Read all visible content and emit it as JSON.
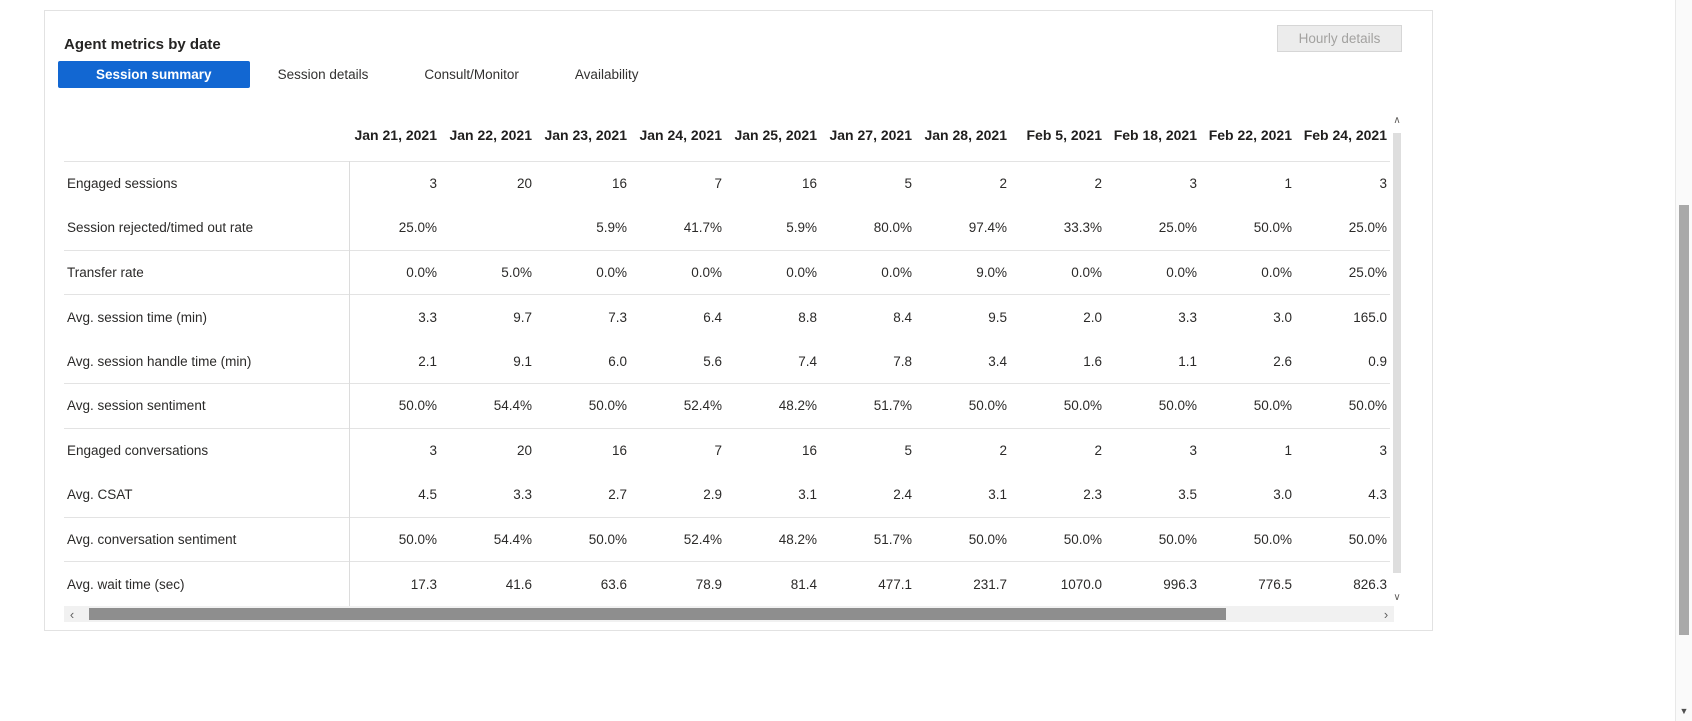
{
  "colors": {
    "accent": "#1267d2",
    "card_border": "#e2e2e2",
    "disabled_button_text": "#a3a2a0",
    "scroll_thumb": "#8e8e8e"
  },
  "header": {
    "title": "Agent metrics by date",
    "button_label": "Hourly details"
  },
  "tabs": [
    {
      "label": "Session summary",
      "active": true
    },
    {
      "label": "Session details",
      "active": false
    },
    {
      "label": "Consult/Monitor",
      "active": false
    },
    {
      "label": "Availability",
      "active": false
    }
  ],
  "table": {
    "columns": [
      "Jan 21, 2021",
      "Jan 22, 2021",
      "Jan 23, 2021",
      "Jan 24, 2021",
      "Jan 25, 2021",
      "Jan 27, 2021",
      "Jan 28, 2021",
      "Feb 5, 2021",
      "Feb 18, 2021",
      "Feb 22, 2021",
      "Feb 24, 2021"
    ],
    "rows": [
      {
        "label": "Engaged sessions",
        "separator": true,
        "values": [
          "3",
          "20",
          "16",
          "7",
          "16",
          "5",
          "2",
          "2",
          "3",
          "1",
          "3"
        ]
      },
      {
        "label": "Session rejected/timed out rate",
        "separator": false,
        "values": [
          "25.0%",
          "",
          "5.9%",
          "41.7%",
          "5.9%",
          "80.0%",
          "97.4%",
          "33.3%",
          "25.0%",
          "50.0%",
          "25.0%"
        ]
      },
      {
        "label": "Transfer rate",
        "separator": true,
        "values": [
          "0.0%",
          "5.0%",
          "0.0%",
          "0.0%",
          "0.0%",
          "0.0%",
          "9.0%",
          "0.0%",
          "0.0%",
          "0.0%",
          "25.0%"
        ]
      },
      {
        "label": "Avg. session time (min)",
        "separator": true,
        "values": [
          "3.3",
          "9.7",
          "7.3",
          "6.4",
          "8.8",
          "8.4",
          "9.5",
          "2.0",
          "3.3",
          "3.0",
          "165.0"
        ]
      },
      {
        "label": "Avg. session handle time (min)",
        "separator": false,
        "values": [
          "2.1",
          "9.1",
          "6.0",
          "5.6",
          "7.4",
          "7.8",
          "3.4",
          "1.6",
          "1.1",
          "2.6",
          "0.9"
        ]
      },
      {
        "label": "Avg. session sentiment",
        "separator": true,
        "values": [
          "50.0%",
          "54.4%",
          "50.0%",
          "52.4%",
          "48.2%",
          "51.7%",
          "50.0%",
          "50.0%",
          "50.0%",
          "50.0%",
          "50.0%"
        ]
      },
      {
        "label": "Engaged conversations",
        "separator": true,
        "values": [
          "3",
          "20",
          "16",
          "7",
          "16",
          "5",
          "2",
          "2",
          "3",
          "1",
          "3"
        ]
      },
      {
        "label": "Avg. CSAT",
        "separator": false,
        "values": [
          "4.5",
          "3.3",
          "2.7",
          "2.9",
          "3.1",
          "2.4",
          "3.1",
          "2.3",
          "3.5",
          "3.0",
          "4.3"
        ]
      },
      {
        "label": "Avg. conversation sentiment",
        "separator": true,
        "values": [
          "50.0%",
          "54.4%",
          "50.0%",
          "52.4%",
          "48.2%",
          "51.7%",
          "50.0%",
          "50.0%",
          "50.0%",
          "50.0%",
          "50.0%"
        ]
      },
      {
        "label": "Avg. wait time (sec)",
        "separator": true,
        "values": [
          "17.3",
          "41.6",
          "63.6",
          "78.9",
          "81.4",
          "477.1",
          "231.7",
          "1070.0",
          "996.3",
          "776.5",
          "826.3"
        ]
      }
    ]
  },
  "icons": {
    "up_chevron": "∧",
    "down_chevron": "∨",
    "left_chevron": "‹",
    "right_chevron": "›",
    "down_triangle": "▼"
  }
}
